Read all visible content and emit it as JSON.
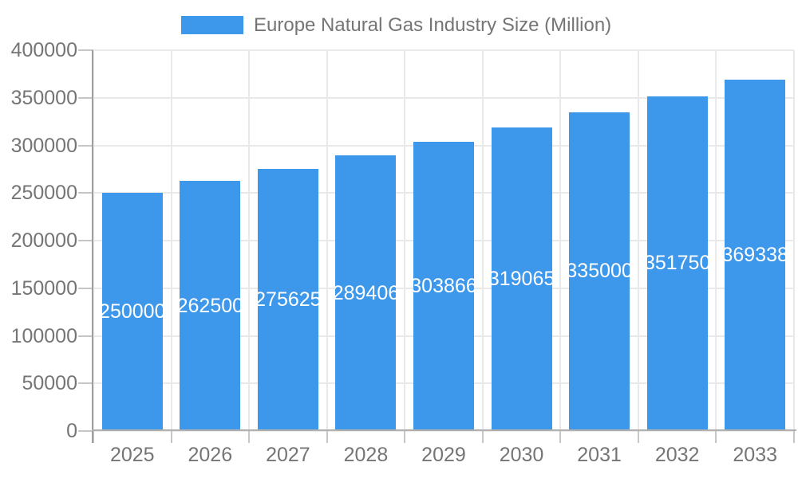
{
  "chart_data": {
    "type": "bar",
    "title": "Europe Natural Gas Industry Size (Million)",
    "categories": [
      "2025",
      "2026",
      "2027",
      "2028",
      "2029",
      "2030",
      "2031",
      "2032",
      "2033"
    ],
    "values": [
      250000,
      262500,
      275625,
      289406,
      303866,
      319065,
      335000,
      351750,
      369338
    ],
    "bar_labels": [
      "250000",
      "262500",
      "275625",
      "289406",
      "303866",
      "319065",
      "335000",
      "351750",
      "369338"
    ],
    "xlabel": "",
    "ylabel": "",
    "ylim": [
      0,
      400000
    ],
    "yticks": [
      0,
      50000,
      100000,
      150000,
      200000,
      250000,
      300000,
      350000,
      400000
    ],
    "ytick_labels": [
      "0",
      "50000",
      "100000",
      "150000",
      "200000",
      "250000",
      "300000",
      "350000",
      "400000"
    ],
    "grid": true,
    "legend_position": "top",
    "colors": {
      "bar": "#3D98EC",
      "bar_label": "#FFFFFF",
      "axis_text": "#757575",
      "grid": "#E9E9E9",
      "tick": "#C6C6C6",
      "y_axis_line": "#9E9E9E",
      "x_axis_line": "#B0B0B0",
      "background": "#FFFFFF"
    }
  }
}
